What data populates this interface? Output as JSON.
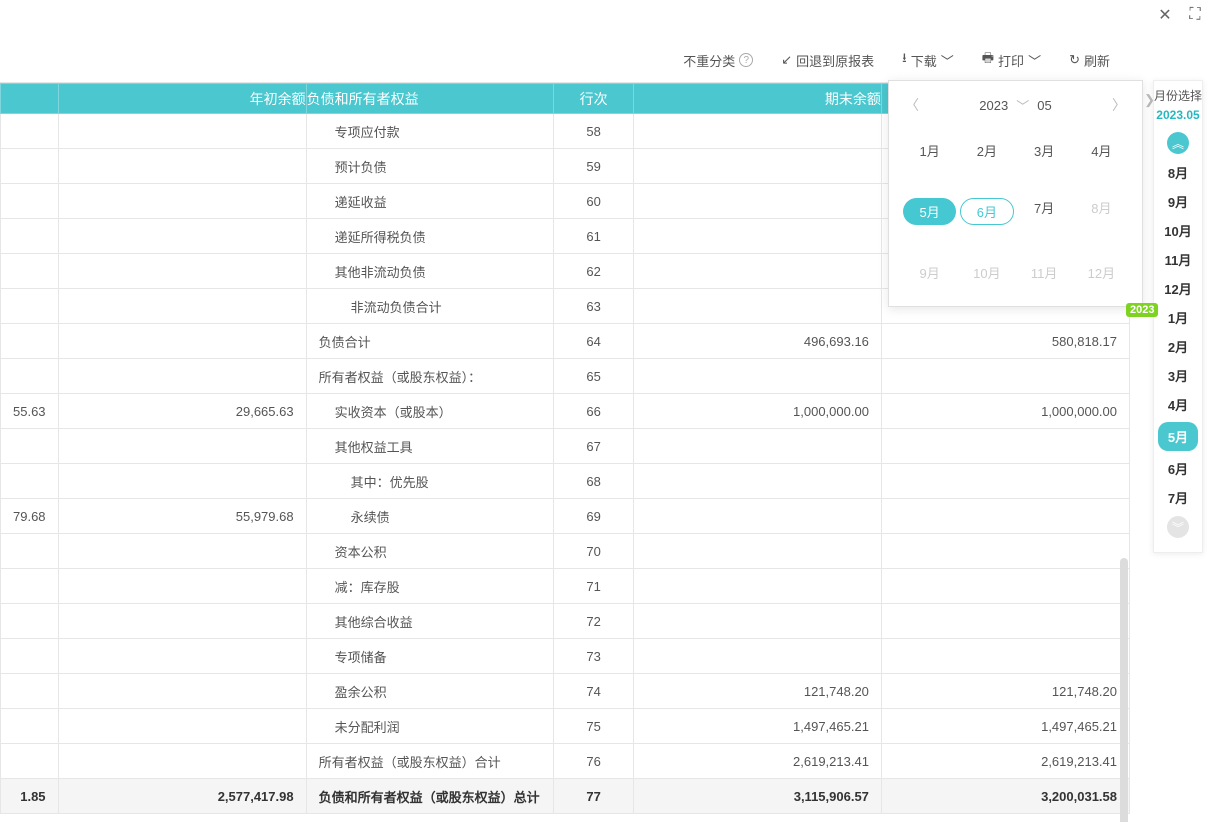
{
  "topIcons": {
    "close": "✕",
    "expand": "⛶"
  },
  "toolbar": {
    "noReclass": "不重分类",
    "back": "回退到原报表",
    "download": "下载",
    "print": "打印",
    "refresh": "刷新"
  },
  "headers": {
    "colA": "",
    "colB": "年初余额",
    "colC": "负债和所有者权益",
    "colD": "行次",
    "colE": "期末余额",
    "colF": ""
  },
  "rows": [
    {
      "a": "",
      "b": "",
      "c": "专项应付款",
      "d": "58",
      "e": "",
      "f": "",
      "indent": 1
    },
    {
      "a": "",
      "b": "",
      "c": "预计负债",
      "d": "59",
      "e": "",
      "f": "",
      "indent": 1
    },
    {
      "a": "",
      "b": "",
      "c": "递延收益",
      "d": "60",
      "e": "",
      "f": "",
      "indent": 1
    },
    {
      "a": "",
      "b": "",
      "c": "递延所得税负债",
      "d": "61",
      "e": "",
      "f": "",
      "indent": 1
    },
    {
      "a": "",
      "b": "",
      "c": "其他非流动负债",
      "d": "62",
      "e": "",
      "f": "",
      "indent": 1
    },
    {
      "a": "",
      "b": "",
      "c": "非流动负债合计",
      "d": "63",
      "e": "",
      "f": "",
      "indent": 2
    },
    {
      "a": "",
      "b": "",
      "c": "负债合计",
      "d": "64",
      "e": "496,693.16",
      "f": "580,818.17",
      "indent": 0
    },
    {
      "a": "",
      "b": "",
      "c": "所有者权益（或股东权益）：",
      "d": "65",
      "e": "",
      "f": "",
      "indent": 0
    },
    {
      "a": "55.63",
      "b": "29,665.63",
      "c": "实收资本（或股本）",
      "d": "66",
      "e": "1,000,000.00",
      "f": "1,000,000.00",
      "indent": 1
    },
    {
      "a": "",
      "b": "",
      "c": "其他权益工具",
      "d": "67",
      "e": "",
      "f": "",
      "indent": 1
    },
    {
      "a": "",
      "b": "",
      "c": "其中：优先股",
      "d": "68",
      "e": "",
      "f": "",
      "indent": 2
    },
    {
      "a": "79.68",
      "b": "55,979.68",
      "c": "永续债",
      "d": "69",
      "e": "",
      "f": "",
      "indent": 2
    },
    {
      "a": "",
      "b": "",
      "c": "资本公积",
      "d": "70",
      "e": "",
      "f": "",
      "indent": 1
    },
    {
      "a": "",
      "b": "",
      "c": "减：库存股",
      "d": "71",
      "e": "",
      "f": "",
      "indent": 1
    },
    {
      "a": "",
      "b": "",
      "c": "其他综合收益",
      "d": "72",
      "e": "",
      "f": "",
      "indent": 1
    },
    {
      "a": "",
      "b": "",
      "c": "专项储备",
      "d": "73",
      "e": "",
      "f": "",
      "indent": 1
    },
    {
      "a": "",
      "b": "",
      "c": "盈余公积",
      "d": "74",
      "e": "121,748.20",
      "f": "121,748.20",
      "indent": 1
    },
    {
      "a": "",
      "b": "",
      "c": "未分配利润",
      "d": "75",
      "e": "1,497,465.21",
      "f": "1,497,465.21",
      "indent": 1
    },
    {
      "a": "",
      "b": "",
      "c": "所有者权益（或股东权益）合计",
      "d": "76",
      "e": "2,619,213.41",
      "f": "2,619,213.41",
      "indent": 0
    },
    {
      "a": "1.85",
      "b": "2,577,417.98",
      "c": "负债和所有者权益（或股东权益）总计",
      "d": "77",
      "e": "3,115,906.57",
      "f": "3,200,031.58",
      "indent": 0,
      "total": true
    }
  ],
  "picker": {
    "year": "2023",
    "month": "05",
    "months": [
      "1月",
      "2月",
      "3月",
      "4月",
      "5月",
      "6月",
      "7月",
      "8月",
      "9月",
      "10月",
      "11月",
      "12月"
    ],
    "selected": "5月",
    "current": "6月",
    "disabled": [
      "8月",
      "9月",
      "10月",
      "11月",
      "12月"
    ]
  },
  "side": {
    "title": "月份选择",
    "current": "2023.05",
    "yearBadge": "2023",
    "items": [
      "8月",
      "9月",
      "10月",
      "11月",
      "12月",
      "1月",
      "2月",
      "3月",
      "4月",
      "5月",
      "6月",
      "7月"
    ],
    "selected": "5月"
  },
  "colors": {
    "teal": "#4ac7cf",
    "border": "#e6e6e6",
    "green": "#7ed321"
  }
}
